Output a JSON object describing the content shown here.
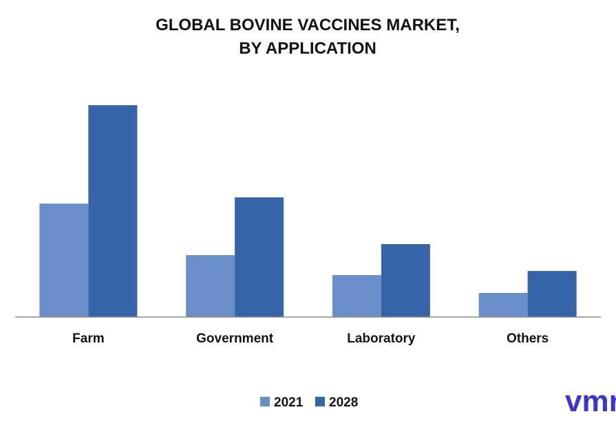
{
  "chart_data": {
    "type": "bar",
    "title": "GLOBAL BOVINE VACCINES MARKET,",
    "subtitle": "BY APPLICATION",
    "categories": [
      "Farm",
      "Government",
      "Laboratory",
      "Others"
    ],
    "series": [
      {
        "name": "2021",
        "values": [
          16.5,
          9.0,
          6.1,
          3.5
        ],
        "color": "#6a8ec8"
      },
      {
        "name": "2028",
        "values": [
          30.8,
          17.4,
          10.6,
          6.7
        ],
        "color": "#3565a8"
      }
    ],
    "ylim": [
      0,
      35
    ],
    "grid": false,
    "legend_position": "bottom",
    "axis_color": "#8c8c8c"
  },
  "logo": {
    "text": "vmr",
    "color": "#3b35c8"
  }
}
